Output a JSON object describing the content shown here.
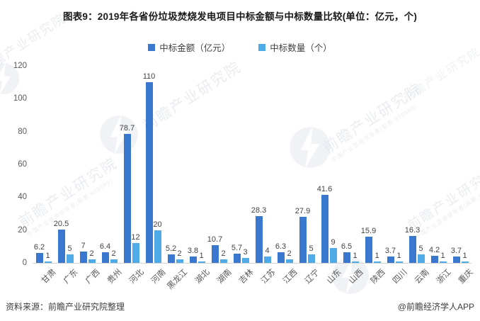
{
  "title": "图表9：2019年各省份垃圾焚烧发电项目中标金额与中标数量比较(单位：亿元，个)",
  "legend": {
    "amount": {
      "label": "中标金额（亿元）",
      "color": "#3a78cf"
    },
    "count": {
      "label": "中标数量（个）",
      "color": "#4fabe8"
    }
  },
  "footer": {
    "source": "资料来源：前瞻产业研究院整理",
    "credit": "@前瞻经济学人APP"
  },
  "watermark": {
    "text": "前瞻产业研究院",
    "subtext": "中国产业咨询领导者(股票:839599)"
  },
  "chart_data": {
    "type": "bar",
    "title": "图表9：2019年各省份垃圾焚烧发电项目中标金额与中标数量比较(单位：亿元，个)",
    "categories": [
      "甘肃",
      "广东",
      "广西",
      "贵州",
      "河北",
      "河南",
      "黑龙江",
      "湖北",
      "湖南",
      "吉林",
      "江苏",
      "江西",
      "辽宁",
      "山东",
      "山西",
      "陕西",
      "四川",
      "云南",
      "浙江",
      "重庆"
    ],
    "series": [
      {
        "name": "中标金额（亿元）",
        "color": "#3a78cf",
        "values": [
          6.2,
          20.5,
          7,
          6.4,
          78.7,
          110,
          5.2,
          3.8,
          10.7,
          5.7,
          28.3,
          6.3,
          27.9,
          41.6,
          6.5,
          15.9,
          3.7,
          16.3,
          4.2,
          3.7
        ],
        "labels": [
          "6.2",
          "20.5",
          "7",
          "6.4",
          "78.7",
          "110",
          "5.2",
          "3.8",
          "10.7",
          "5.7",
          "28.3",
          "6.3",
          "27.9",
          "41.6",
          "6.5",
          "15.9",
          "3.7",
          "16.3",
          "4.2",
          "3.7"
        ]
      },
      {
        "name": "中标数量（个）",
        "color": "#4fabe8",
        "values": [
          1,
          5,
          2,
          2,
          12,
          20,
          2,
          1,
          2,
          3,
          4,
          2,
          5,
          9,
          1,
          1,
          1,
          5,
          1,
          1
        ],
        "labels": [
          "1",
          "5",
          "2",
          "2",
          "12",
          "20",
          "2",
          "1",
          "2",
          "3",
          "4",
          "2",
          "5",
          "9",
          "1",
          "1",
          "1",
          "5",
          "1",
          "1"
        ]
      }
    ],
    "xlabel": "",
    "ylabel": "",
    "ylim": [
      0,
      120
    ],
    "yticks": [
      0,
      20,
      40,
      60,
      80,
      100,
      120
    ],
    "grid": false,
    "legend_position": "top-center"
  }
}
